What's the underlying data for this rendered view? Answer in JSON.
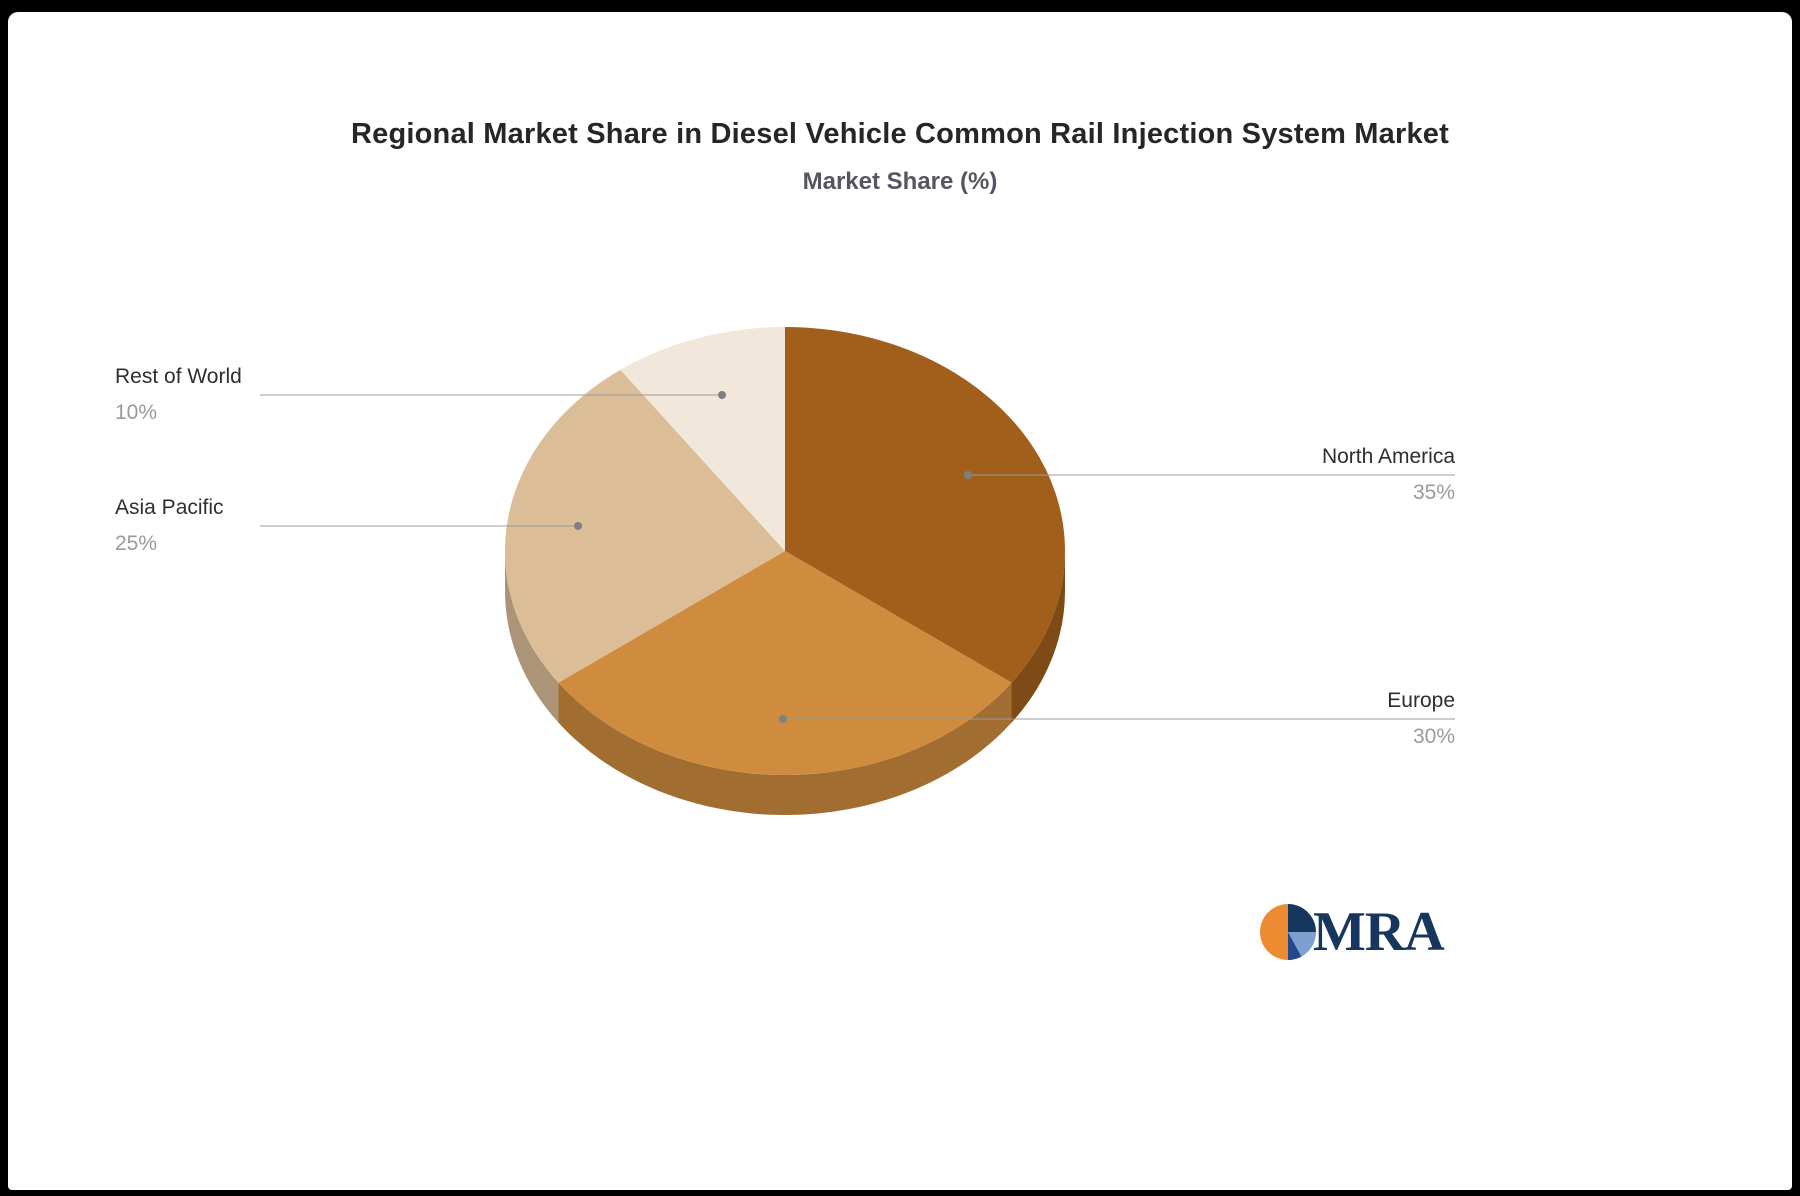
{
  "header": {
    "title": "Regional Market Share in Diesel Vehicle Common Rail Injection System Market",
    "subtitle": "Market Share (%)"
  },
  "chart_data": {
    "type": "pie",
    "style": "3d",
    "title": "Regional Market Share in Diesel Vehicle Common Rail Injection System Market",
    "subtitle": "Market Share (%)",
    "unit": "%",
    "legend": "none",
    "label_style": "callout-lines",
    "categories": [
      "North America",
      "Europe",
      "Asia Pacific",
      "Rest of World"
    ],
    "values": [
      35,
      30,
      25,
      10
    ],
    "slices": [
      {
        "label": "North America",
        "value": 35,
        "pct_label": "35%",
        "color": "#A15F1B"
      },
      {
        "label": "Europe",
        "value": 30,
        "pct_label": "30%",
        "color": "#CF8C3E"
      },
      {
        "label": "Asia Pacific",
        "value": 25,
        "pct_label": "25%",
        "color": "#DBBE98"
      },
      {
        "label": "Rest of World",
        "value": 10,
        "pct_label": "10%",
        "color": "#F1E8DB"
      }
    ]
  },
  "branding": {
    "logo_text": "MRA"
  }
}
